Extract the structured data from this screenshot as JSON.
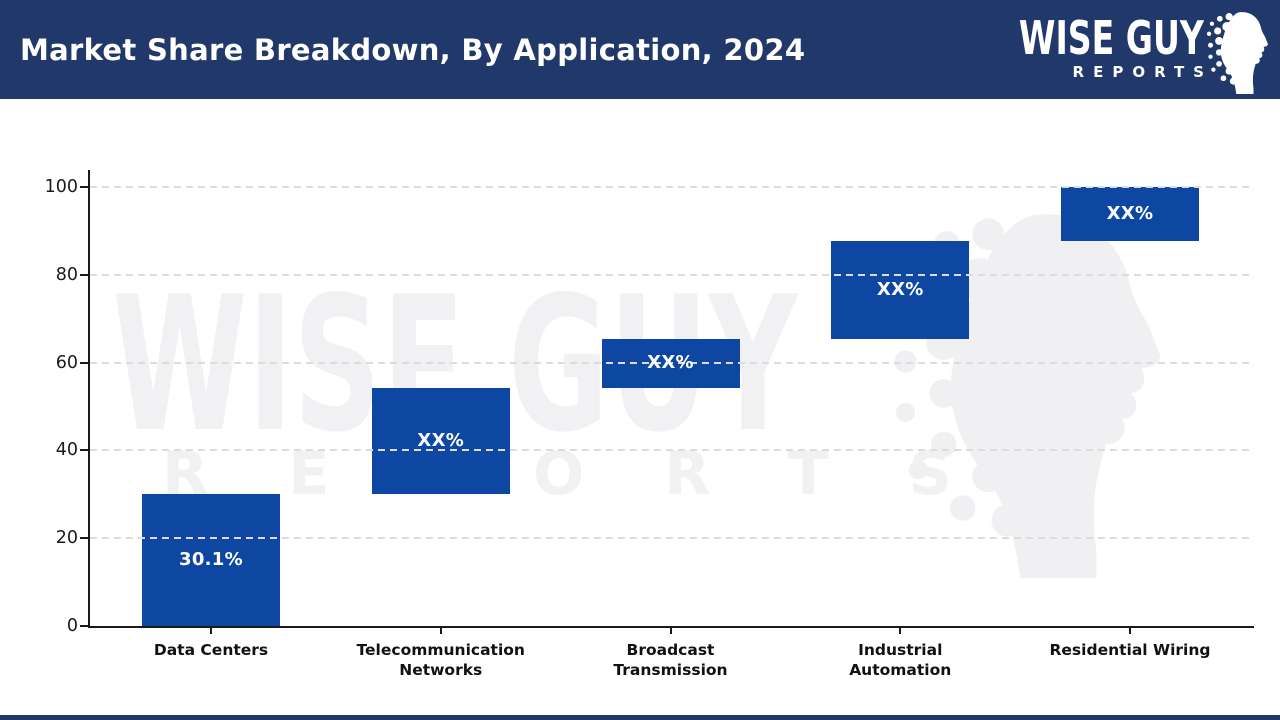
{
  "header": {
    "title": "Market Share Breakdown, By Application, 2024",
    "logo": {
      "line1": "WISE GUY",
      "line2": "REPORTS"
    }
  },
  "watermark": {
    "line1": "WISE GUY",
    "line2": "REPORTS"
  },
  "chart_data": {
    "type": "bar",
    "subtype": "floating-segment waterfall (stacked market share breakdown)",
    "title": "Market Share Breakdown, By Application, 2024",
    "categories": [
      "Data Centers",
      "Telecommunication Networks",
      "Broadcast Transmission",
      "Industrial Automation",
      "Residential Wiring"
    ],
    "category_label_lines": [
      [
        "Data Centers"
      ],
      [
        "Telecommunication",
        "Networks"
      ],
      [
        "Broadcast",
        "Transmission"
      ],
      [
        "Industrial",
        "Automation"
      ],
      [
        "Residential Wiring"
      ]
    ],
    "segments": [
      {
        "category": "Data Centers",
        "start": 0,
        "end": 30.1,
        "size": 30.1,
        "label": "30.1%"
      },
      {
        "category": "Telecommunication Networks",
        "start": 30.1,
        "end": 54.2,
        "size": 24.1,
        "label": "XX%"
      },
      {
        "category": "Broadcast Transmission",
        "start": 54.2,
        "end": 65.4,
        "size": 11.2,
        "label": "XX%"
      },
      {
        "category": "Industrial Automation",
        "start": 65.4,
        "end": 87.8,
        "size": 22.4,
        "label": "XX%"
      },
      {
        "category": "Residential Wiring",
        "start": 87.8,
        "end": 100,
        "size": 12.2,
        "label": "XX%"
      }
    ],
    "xlabel": "",
    "ylabel": "",
    "yticks": [
      0,
      20,
      40,
      60,
      80,
      100
    ],
    "ylim": [
      0,
      104
    ],
    "grid": {
      "horizontal_dashed": true,
      "drawn_above_bars": true
    },
    "legend": "none",
    "colors": {
      "bar": "#0d47a1",
      "bar_label": "#ffffff",
      "grid": "#dcdcdc",
      "axis": "#1a1a1a",
      "tick_label": "#1a1a1a",
      "category_label": "#111111"
    }
  },
  "colors": {
    "header_bg": "#21386a",
    "footer_bg": "#21386a",
    "title_text": "#ffffff",
    "logo_text": "#ffffff",
    "watermark": "#f1f1f4",
    "background": "#ffffff"
  }
}
